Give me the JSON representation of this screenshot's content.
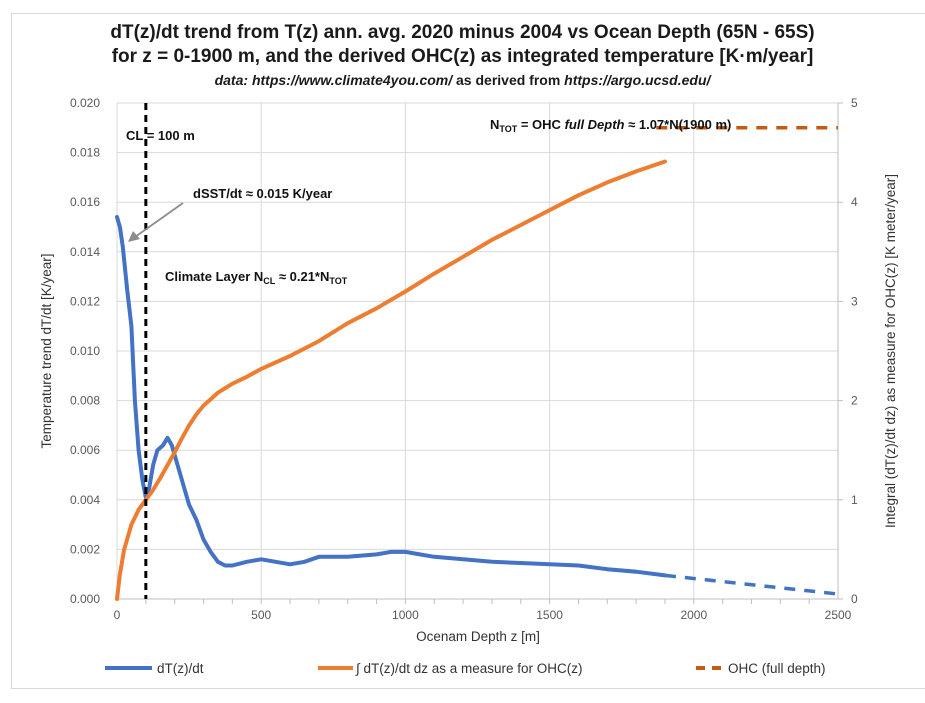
{
  "chart_data": {
    "type": "line",
    "title_lines": [
      "dT(z)/dt trend from T(z) ann. avg. 2020 minus 2004 vs Ocean Depth (65N - 65S)",
      "for z = 0-1900 m, and the derived OHC(z) as integrated temperature [K·m/year]"
    ],
    "subtitle": {
      "prefix": "data: ",
      "link1": "https://www.climate4you.com/",
      "middle": " as derived from ",
      "link2": "https://argo.ucsd.edu/"
    },
    "xlabel": "Ocenam Depth z  [m]",
    "ylabel": "Temperature trend dT/dt  [K/year]",
    "y2label": "Integral (dT(z)/dt dz) as measure for OHC(z)  [K meter/year]",
    "xlim": [
      0,
      2500
    ],
    "ylim": [
      0,
      0.02
    ],
    "y2lim": [
      0,
      5
    ],
    "xticks": [
      0,
      500,
      1000,
      1500,
      2000,
      2500
    ],
    "xtick_labels": [
      "0",
      "500",
      "1000",
      "1500",
      "2000",
      "2500"
    ],
    "yticks": [
      0,
      0.002,
      0.004,
      0.006,
      0.008,
      0.01,
      0.012,
      0.014,
      0.016,
      0.018,
      0.02
    ],
    "ytick_labels": [
      "0.000",
      "0.002",
      "0.004",
      "0.006",
      "0.008",
      "0.010",
      "0.012",
      "0.014",
      "0.016",
      "0.018",
      "0.020"
    ],
    "y2ticks": [
      0,
      1,
      2,
      3,
      4,
      5
    ],
    "y2tick_labels": [
      "0",
      "1",
      "2",
      "3",
      "4",
      "5"
    ],
    "grid": true,
    "legend_position": "bottom",
    "series": [
      {
        "name": "dT(z)/dt",
        "axis": "left",
        "color": "#4472c4",
        "style": "solid",
        "x": [
          0,
          10,
          20,
          35,
          50,
          62,
          75,
          88,
          100,
          112,
          125,
          140,
          160,
          175,
          190,
          200,
          225,
          250,
          275,
          300,
          325,
          350,
          375,
          400,
          450,
          500,
          550,
          600,
          650,
          700,
          800,
          900,
          950,
          1000,
          1050,
          1100,
          1200,
          1300,
          1400,
          1500,
          1600,
          1700,
          1800,
          1900
        ],
        "values": [
          0.0154,
          0.015,
          0.0142,
          0.0125,
          0.011,
          0.008,
          0.006,
          0.0048,
          0.0041,
          0.0045,
          0.0054,
          0.006,
          0.0062,
          0.0065,
          0.0062,
          0.0058,
          0.0048,
          0.0038,
          0.0032,
          0.0024,
          0.0019,
          0.0015,
          0.00135,
          0.00135,
          0.0015,
          0.0016,
          0.0015,
          0.0014,
          0.0015,
          0.0017,
          0.0017,
          0.0018,
          0.0019,
          0.0019,
          0.0018,
          0.0017,
          0.0016,
          0.0015,
          0.00145,
          0.0014,
          0.00135,
          0.0012,
          0.0011,
          0.00095
        ]
      },
      {
        "name": "dT(z)/dt extrapolation",
        "axis": "left",
        "color": "#4472c4",
        "style": "dashed",
        "x": [
          1900,
          2500
        ],
        "values": [
          0.00095,
          0.0002
        ]
      },
      {
        "name": "∫ dT(z)/dt dz as a measure for OHC(z)",
        "axis": "right",
        "color": "#ed7d31",
        "style": "solid",
        "x": [
          0,
          10,
          25,
          50,
          75,
          100,
          125,
          150,
          175,
          200,
          225,
          250,
          275,
          300,
          350,
          400,
          450,
          500,
          600,
          700,
          800,
          900,
          1000,
          1100,
          1200,
          1300,
          1400,
          1500,
          1600,
          1700,
          1800,
          1900
        ],
        "values": [
          0,
          0.25,
          0.5,
          0.75,
          0.9,
          1.0,
          1.1,
          1.22,
          1.35,
          1.48,
          1.62,
          1.75,
          1.86,
          1.95,
          2.08,
          2.17,
          2.24,
          2.32,
          2.45,
          2.6,
          2.78,
          2.93,
          3.1,
          3.28,
          3.45,
          3.62,
          3.77,
          3.92,
          4.07,
          4.2,
          4.31,
          4.41
        ]
      },
      {
        "name": "OHC (full depth)",
        "axis": "right",
        "color": "#c55a11",
        "style": "dashed",
        "x": [
          1870,
          2500
        ],
        "values": [
          4.75,
          4.75
        ]
      }
    ],
    "vertical_line": {
      "x": 100,
      "style": "dashed",
      "color": "#000000"
    },
    "annotations": {
      "cl": "CL = 100 m",
      "dsst": "dSST/dt ≈ 0.015 K/year",
      "climate_layer_prefix": "Climate Layer N",
      "climate_layer_sub": "CL",
      "climate_layer_mid": " ≈ 0.21*N",
      "climate_layer_sub2": "TOT",
      "ntot_prefix": "N",
      "ntot_sub": "TOT",
      "ntot_mid": " = OHC ",
      "ntot_italic": "full Depth",
      "ntot_suffix": " ≈ 1.07*N(1900 m)"
    },
    "legend": [
      {
        "label": "dT(z)/dt",
        "color": "#4472c4",
        "style": "solid"
      },
      {
        "label": "∫ dT(z)/dt dz as a measure for OHC(z)",
        "color": "#ed7d31",
        "style": "solid"
      },
      {
        "label": "OHC (full depth)",
        "color": "#c55a11",
        "style": "dashed"
      }
    ]
  }
}
